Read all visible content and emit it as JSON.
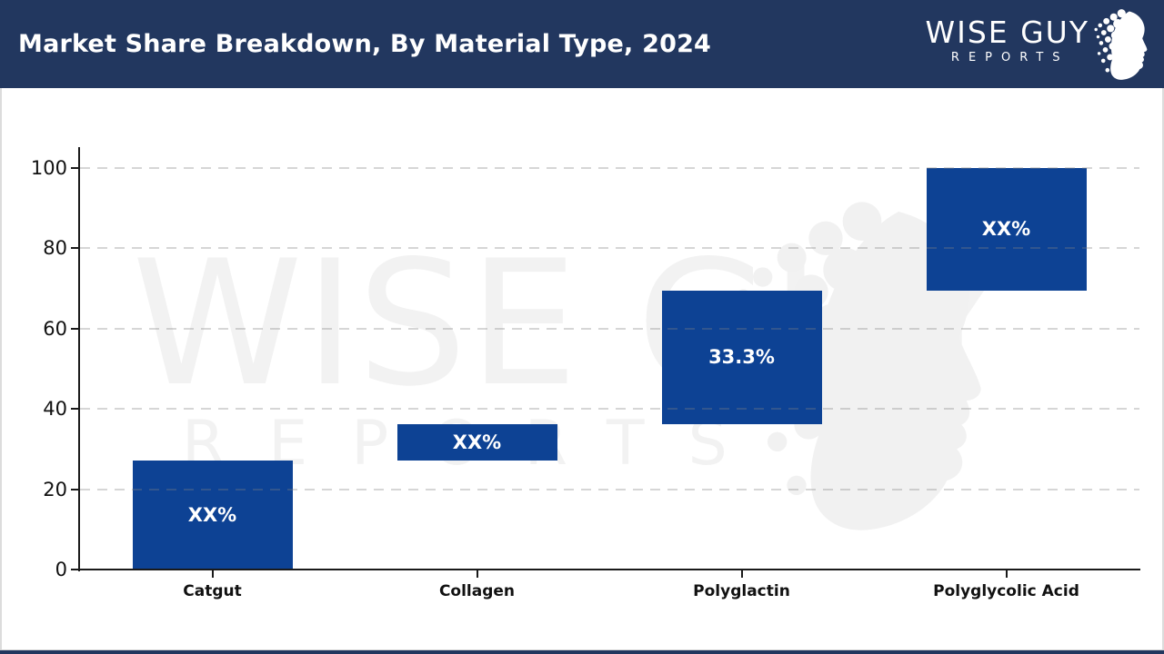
{
  "header": {
    "title": "Market Share Breakdown, By Material Type, 2024",
    "background_color": "#22375f",
    "logo": {
      "line1": "WISE GUY",
      "line2": "REPORTS"
    }
  },
  "watermark": {
    "line1": "WISE GUY",
    "line2": "REPORTS"
  },
  "chart_data": {
    "type": "bar",
    "subtype": "waterfall",
    "title": "Market Share Breakdown, By Material Type, 2024",
    "categories": [
      "Catgut",
      "Collagen",
      "Polyglactin",
      "Polyglycolic Acid"
    ],
    "values": [
      27.2,
      9.0,
      33.3,
      30.5
    ],
    "series": [
      {
        "name": "Market Share (%)",
        "segments": [
          {
            "category": "Catgut",
            "start": 0,
            "end": 27.2,
            "label": "XX%"
          },
          {
            "category": "Collagen",
            "start": 27.2,
            "end": 36.2,
            "label": "XX%"
          },
          {
            "category": "Polyglactin",
            "start": 36.2,
            "end": 69.5,
            "label": "33.3%"
          },
          {
            "category": "Polyglycolic Acid",
            "start": 69.5,
            "end": 100,
            "label": "XX%"
          }
        ]
      }
    ],
    "ylim": [
      0,
      100
    ],
    "yticks": [
      0,
      20,
      40,
      60,
      80,
      100
    ],
    "xlabel": "",
    "ylabel": "",
    "grid": "dashed-horizontal",
    "legend": "none",
    "bar_color": "#0d4294",
    "bar_label_color": "#ffffff",
    "axis_color": "#1a1a1a"
  }
}
